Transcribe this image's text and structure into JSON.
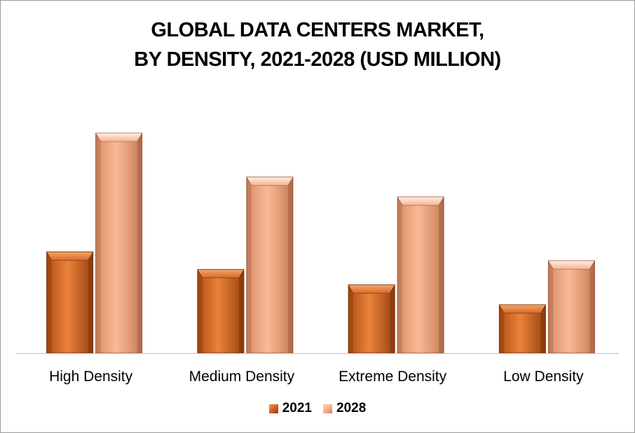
{
  "chart_data": {
    "type": "bar",
    "title_lines": [
      "GLOBAL DATA CENTERS MARKET,",
      "BY DENSITY, 2021-2028 (USD MILLION)"
    ],
    "categories": [
      "High Density",
      "Medium Density",
      "Extreme Density",
      "Low Density"
    ],
    "series": [
      {
        "name": "2021",
        "values": [
          46,
          38,
          31,
          22
        ],
        "color": "#e07a35"
      },
      {
        "name": "2028",
        "values": [
          100,
          80,
          71,
          42
        ],
        "color": "#f6b18e"
      }
    ],
    "ylim": [
      0,
      100
    ],
    "grid": false,
    "legend_position": "bottom"
  }
}
